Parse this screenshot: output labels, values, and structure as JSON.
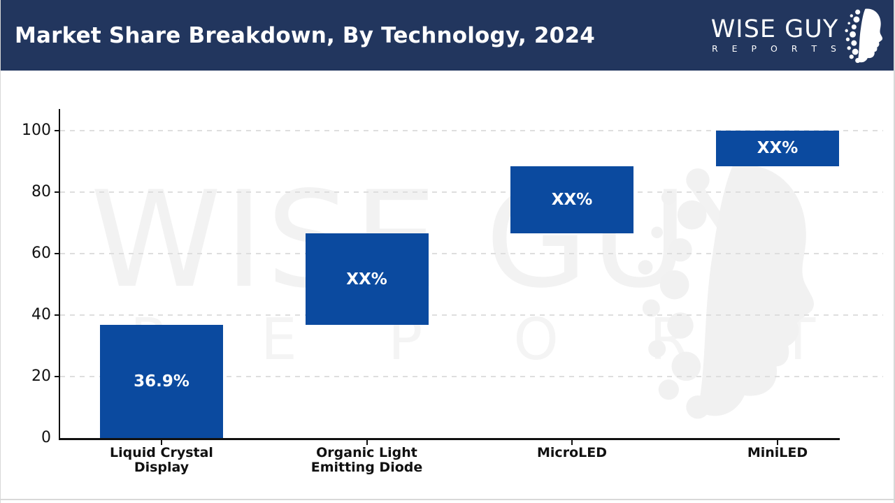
{
  "header": {
    "title": "Market Share Breakdown, By Technology, 2024",
    "background_color": "#22365e",
    "logo": {
      "wordmark": "WISE GUY",
      "subtext": "R E P O R T S"
    }
  },
  "watermark": {
    "line1": "WISE GUY",
    "line2": "R E P O R T S"
  },
  "chart_data": {
    "type": "bar",
    "subtype": "floating-waterfall",
    "title": "Market Share Breakdown, By Technology, 2024",
    "categories": [
      "Liquid Crystal Display",
      "Organic Light Emitting Diode",
      "MicroLED",
      "MiniLED"
    ],
    "category_label_lines": [
      [
        "Liquid Crystal",
        "Display"
      ],
      [
        "Organic Light",
        "Emitting Diode"
      ],
      [
        "MicroLED"
      ],
      [
        "MiniLED"
      ]
    ],
    "segments": [
      {
        "category": "Liquid Crystal Display",
        "start": 0,
        "end": 36.9,
        "value": 36.9,
        "label": "36.9%"
      },
      {
        "category": "Organic Light Emitting Diode",
        "start": 36.9,
        "end": 66.5,
        "value_est": 29.6,
        "label": "XX%"
      },
      {
        "category": "MicroLED",
        "start": 66.5,
        "end": 88.5,
        "value_est": 22.0,
        "label": "XX%"
      },
      {
        "category": "MiniLED",
        "start": 88.5,
        "end": 100.0,
        "value_est": 11.5,
        "label": "XX%"
      }
    ],
    "ylim": [
      0,
      100
    ],
    "yticks": [
      0,
      20,
      40,
      60,
      80,
      100
    ],
    "xlabel": "",
    "ylabel": "",
    "grid": "horizontal-dashed",
    "legend": "none",
    "bar_color": "#0b4a9f",
    "bar_label_color": "#ffffff",
    "axis_color": "#111111",
    "gridline_color": "#dedede"
  }
}
